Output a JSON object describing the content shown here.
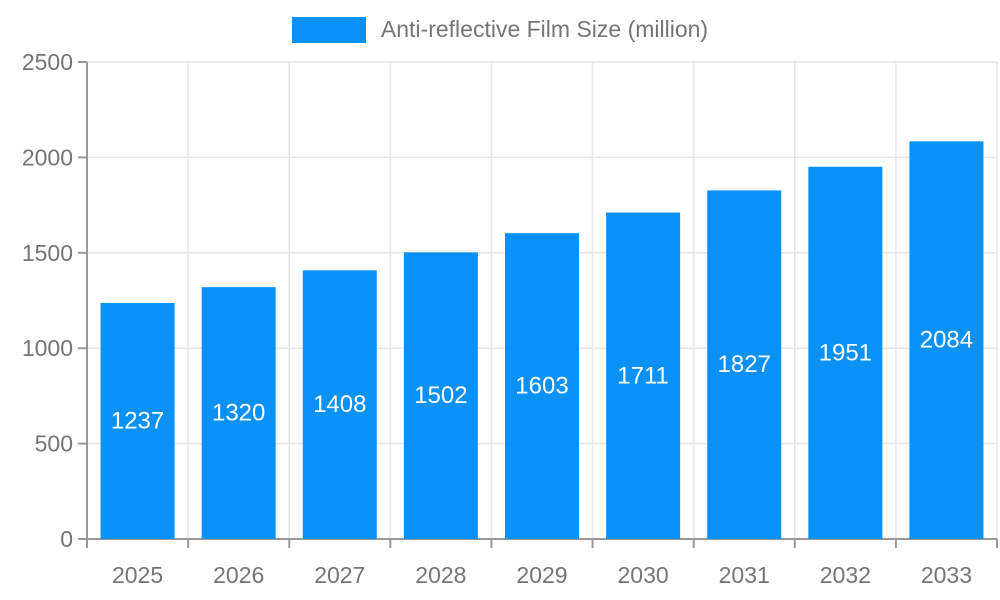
{
  "legend": {
    "label": "Anti-reflective Film Size (million)"
  },
  "chart_data": {
    "type": "bar",
    "title": "Anti-reflective Film Size (million)",
    "categories": [
      "2025",
      "2026",
      "2027",
      "2028",
      "2029",
      "2030",
      "2031",
      "2032",
      "2033"
    ],
    "values": [
      1237,
      1320,
      1408,
      1502,
      1603,
      1711,
      1827,
      1951,
      2084
    ],
    "value_labels": [
      "1237",
      "1320",
      "1408",
      "1502",
      "1603",
      "1711",
      "1827",
      "1951",
      "2084"
    ],
    "xlabel": "",
    "ylabel": "",
    "ylim": [
      0,
      2500
    ],
    "yticks": [
      0,
      500,
      1000,
      1500,
      2000,
      2500
    ],
    "grid": "on",
    "legend_position": "top-center",
    "colors": {
      "bar": "#0991f5",
      "grid": "#e6e6e6",
      "axis": "#999999",
      "tick_text": "#757575",
      "value_label": "#ffffff",
      "background": "#ffffff"
    }
  }
}
